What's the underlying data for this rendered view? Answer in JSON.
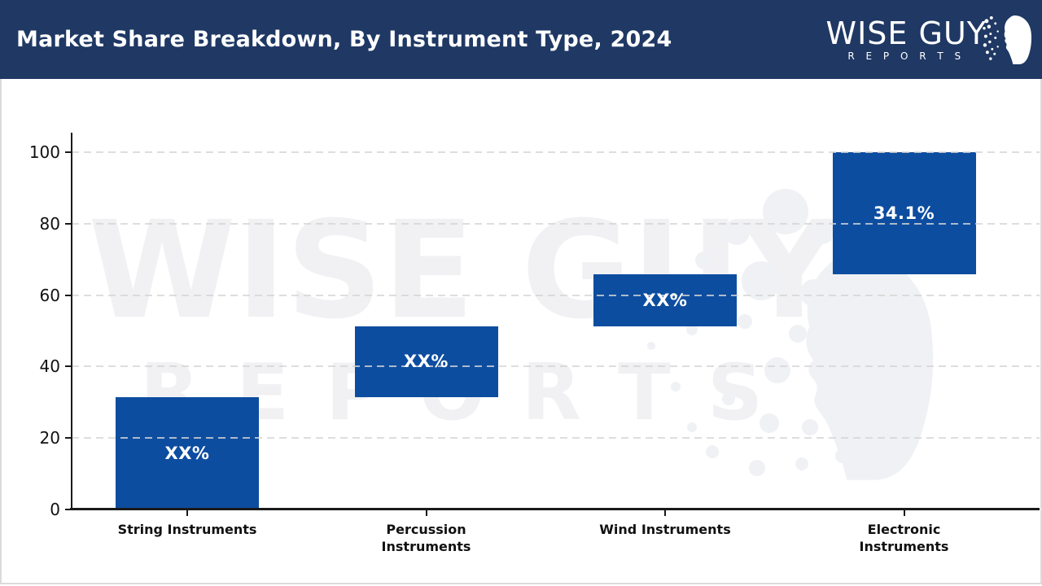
{
  "header": {
    "title": "Market Share Breakdown, By Instrument Type, 2024",
    "logo": {
      "name": "WISE GUY",
      "sub": "R E P O R T S"
    }
  },
  "watermark": {
    "line1": "WISE GUY",
    "line2": "R E P O R T S"
  },
  "chart_data": {
    "type": "bar",
    "subtype": "floating-waterfall",
    "title": "Market Share Breakdown, By Instrument Type, 2024",
    "xlabel": "",
    "ylabel": "",
    "ylim": [
      0,
      100
    ],
    "yticks": [
      0,
      20,
      40,
      60,
      80,
      100
    ],
    "grid": "horizontal-dashed",
    "bar_color": "#0D4DA0",
    "bars": [
      {
        "category": "String Instruments",
        "start": 0,
        "end": 31.5,
        "label": "XX%"
      },
      {
        "category": "Percussion\nInstruments",
        "start": 31.5,
        "end": 51.2,
        "label": "XX%"
      },
      {
        "category": "Wind Instruments",
        "start": 51.2,
        "end": 65.9,
        "label": "XX%"
      },
      {
        "category": "Electronic\nInstruments",
        "start": 65.9,
        "end": 100,
        "label": "34.1%"
      }
    ]
  }
}
